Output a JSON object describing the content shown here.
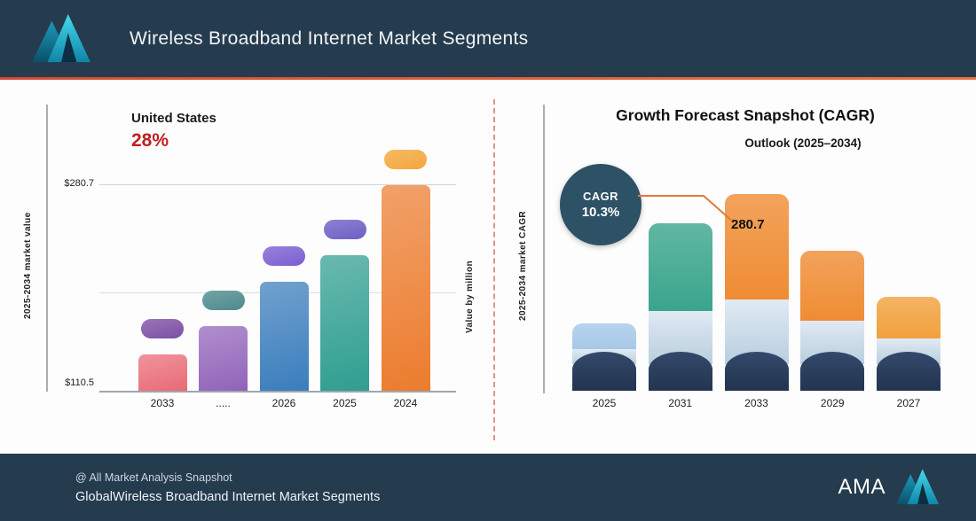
{
  "header": {
    "title": "Wireless Broadband Internet Market Segments",
    "brand": "AMA"
  },
  "left_panel": {
    "highlight_value": "28%"
  },
  "right_panel": {
    "badge_label": "CAGR"
  },
  "footer": {
    "line1": "@ All Market Analysis Snapshot",
    "line2": "GlobalWireless Broadband Internet Market Segments",
    "brand": "AMA"
  },
  "colors": {
    "header_bg": "#253b4e",
    "accent_line": "#e2593f",
    "highlight_red": "#c11f1f",
    "badge_bg": "#2d5165",
    "connector_orange": "#e07b39",
    "divider_dash": "#e09383"
  },
  "chart_data": [
    {
      "type": "bar",
      "title": "United States",
      "ylabel": "2025-2034 market value",
      "ylabel_right": "Value by million",
      "ylim": [
        100,
        280.7
      ],
      "y_tick_labels": [
        "$110.5",
        "$280.7"
      ],
      "grid": true,
      "legend": "none",
      "categories": [
        "2033",
        ".....",
        "2026",
        "2025",
        "2024"
      ],
      "values": [
        132,
        157,
        196,
        219,
        280.7
      ],
      "bar_colors": [
        "#e96a75",
        "#9163b9",
        "#3a7dbd",
        "#2f9e90",
        "#ec7c2e"
      ],
      "cap_colors": [
        "#7b4fa3",
        "#4c8a8c",
        "#7a5fd1",
        "#6b5fc4",
        "#f4a63b"
      ]
    },
    {
      "type": "bar",
      "title": "Growth Forecast Snapshot (CAGR)",
      "subtitle": "Outlook (2025–2034)",
      "ylabel": "2025-2034 market CAGR",
      "cagr": "10.3%",
      "legend": "none",
      "categories": [
        "2025",
        "2031",
        "2033",
        "2029",
        "2027"
      ],
      "values": [
        96,
        239,
        280.7,
        200,
        134
      ],
      "annotation": {
        "category": "2033",
        "label": "280.7"
      },
      "segment_colors": {
        "top": [
          "#a6c8e8",
          "#3aa58c",
          "#ef8c33",
          "#ef8c33",
          "#f1a13d"
        ],
        "middle": "#c3d6e8",
        "base": "#2b4059"
      }
    }
  ]
}
